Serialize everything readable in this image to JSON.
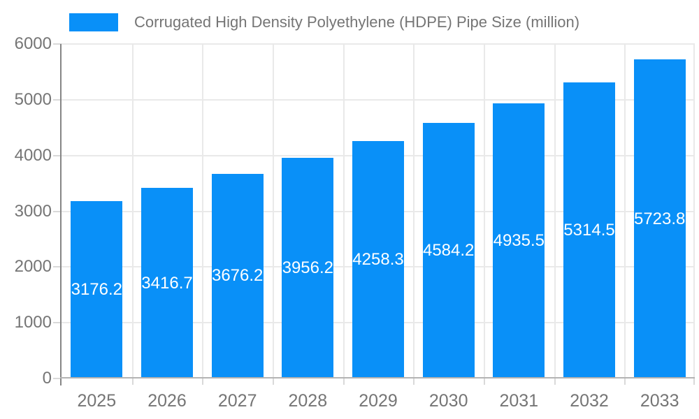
{
  "legend": {
    "label": "Corrugated High Density Polyethylene (HDPE) Pipe Size (million)"
  },
  "chart_data": {
    "type": "bar",
    "title": "Corrugated High Density Polyethylene (HDPE) Pipe Size (million)",
    "categories": [
      "2025",
      "2026",
      "2027",
      "2028",
      "2029",
      "2030",
      "2031",
      "2032",
      "2033"
    ],
    "values": [
      3176.2,
      3416.7,
      3676.2,
      3956.2,
      4258.3,
      4584.2,
      4935.5,
      5314.5,
      5723.8
    ],
    "value_labels": [
      "3176.2",
      "3416.7",
      "3676.2",
      "3956.2",
      "4258.3",
      "4584.2",
      "4935.5",
      "5314.5",
      "5723.8"
    ],
    "ylim": [
      0,
      6000
    ],
    "ytick_step": 1000,
    "ytick_labels": [
      "0",
      "1000",
      "2000",
      "3000",
      "4000",
      "5000",
      "6000"
    ],
    "grid": true,
    "legend_position": "top"
  },
  "colors": {
    "bar": "#0990f8",
    "grid": "#e9e9e9",
    "axis_left": "#858585",
    "axis_bottom": "#b3b3b3",
    "tick": "#d9d9d9",
    "text": "#757575",
    "value_label": "#ffffff",
    "background": "#ffffff"
  }
}
